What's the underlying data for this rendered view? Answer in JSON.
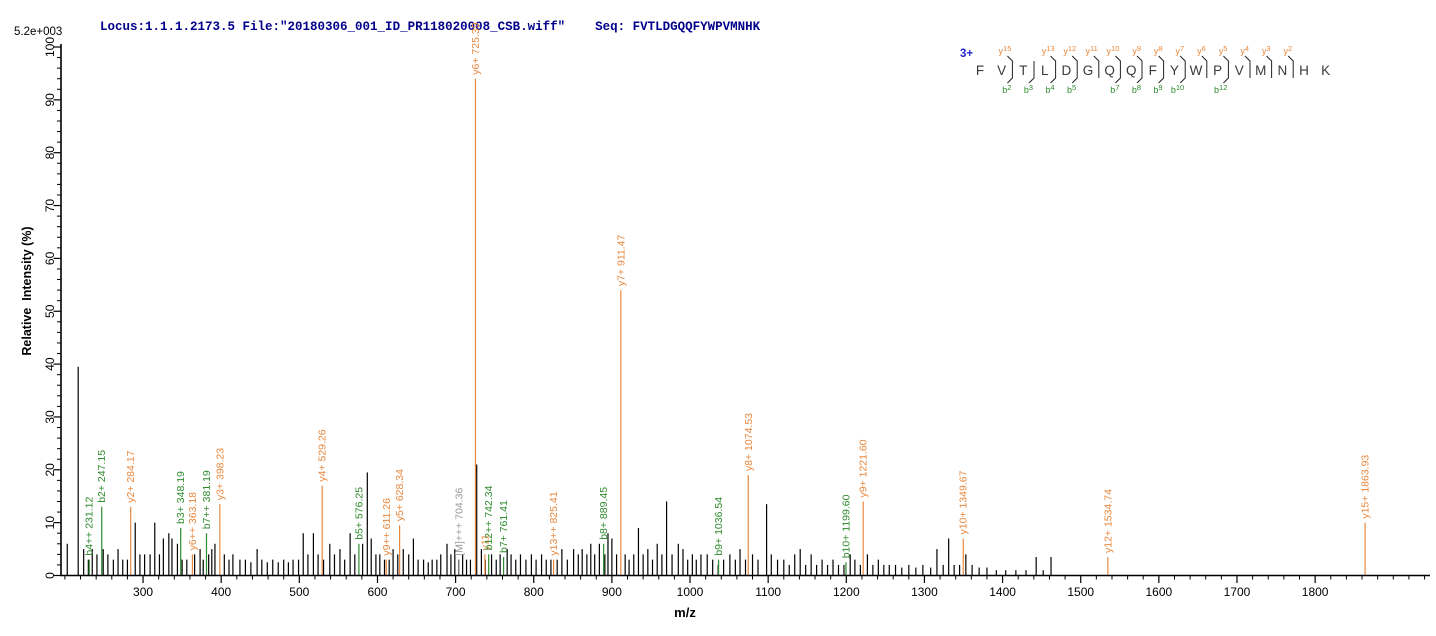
{
  "header": {
    "locus_file": "Locus:1.1.1.2173.5 File:\"20180306_001_ID_PR118020008_CSB.wiff\"",
    "seq": "Seq: FVTLDGQQFYWPVMNHK"
  },
  "colors": {
    "header_text": "#00008b",
    "y_ion": "#e8883e",
    "b_ion": "#2e8b2e",
    "precursor": "#9a9a9a",
    "charge": "#2424cf",
    "residue": "#3a3a3a",
    "peak": "#000000",
    "axis": "#000000"
  },
  "sequence_panel": {
    "charge_label": "3+",
    "residues": [
      "F",
      "V",
      "T",
      "L",
      "D",
      "G",
      "Q",
      "Q",
      "F",
      "Y",
      "W",
      "P",
      "V",
      "M",
      "N",
      "H",
      "K"
    ],
    "cleavages": [
      {
        "after": 2,
        "y": "y15",
        "b": "b2"
      },
      {
        "after": 3,
        "y": null,
        "b": "b3"
      },
      {
        "after": 4,
        "y": "y13",
        "b": "b4"
      },
      {
        "after": 5,
        "y": "y12",
        "b": "b5"
      },
      {
        "after": 6,
        "y": "y11",
        "b": null
      },
      {
        "after": 7,
        "y": "y10",
        "b": "b7"
      },
      {
        "after": 8,
        "y": "y9",
        "b": "b8"
      },
      {
        "after": 9,
        "y": "y8",
        "b": "b9"
      },
      {
        "after": 10,
        "y": "y7",
        "b": "b10"
      },
      {
        "after": 11,
        "y": "y6",
        "b": null
      },
      {
        "after": 12,
        "y": "y5",
        "b": "b12"
      },
      {
        "after": 13,
        "y": "y4",
        "b": null
      },
      {
        "after": 14,
        "y": "y3",
        "b": null
      },
      {
        "after": 15,
        "y": "y2",
        "b": null
      }
    ]
  },
  "chart_data": {
    "type": "bar",
    "subtype": "ms2-mass-spectrum",
    "title": "",
    "xlabel": "m/z",
    "ylabel": "Relative  Intensity (%)",
    "y_axis_note": "5.2e+003",
    "xlim": [
      195,
      1947
    ],
    "ylim": [
      0,
      100
    ],
    "grid": false,
    "x_major_ticks": [
      300,
      400,
      500,
      600,
      700,
      800,
      900,
      1000,
      1100,
      1200,
      1300,
      1400,
      1500,
      1600,
      1700,
      1800
    ],
    "x_minor_step": 20,
    "y_major_step": 10,
    "y_minor_step": 2,
    "annotated_peaks": [
      {
        "label": "b4++ 231.12",
        "ion": "b4++",
        "mz": 231.12,
        "intensity": 3,
        "series": "b"
      },
      {
        "label": "b2+ 247.15",
        "ion": "b2+",
        "mz": 247.15,
        "intensity": 13,
        "series": "b"
      },
      {
        "label": "y2+ 284.17",
        "ion": "y2+",
        "mz": 284.17,
        "intensity": 13,
        "series": "y"
      },
      {
        "label": "b3+ 348.19",
        "ion": "b3+",
        "mz": 348.19,
        "intensity": 9,
        "series": "b"
      },
      {
        "label": "y6++ 363.18",
        "ion": "y6++",
        "mz": 363.18,
        "intensity": 4,
        "series": "y"
      },
      {
        "label": "b7++ 381.19",
        "ion": "b7++",
        "mz": 381.19,
        "intensity": 8,
        "series": "b"
      },
      {
        "label": "y3+ 398.23",
        "ion": "y3+",
        "mz": 398.23,
        "intensity": 13.5,
        "series": "y"
      },
      {
        "label": "y4+ 529.26",
        "ion": "y4+",
        "mz": 529.26,
        "intensity": 17,
        "series": "y"
      },
      {
        "label": "b5+ 576.25",
        "ion": "b5+",
        "mz": 576.25,
        "intensity": 6,
        "series": "b"
      },
      {
        "label": "y9++ 611.26",
        "ion": "y9++",
        "mz": 611.26,
        "intensity": 3,
        "series": "y"
      },
      {
        "label": "y5+ 628.34",
        "ion": "y5+",
        "mz": 628.34,
        "intensity": 9.5,
        "series": "y"
      },
      {
        "label": "[M]+++ 704.36",
        "ion": "[M]+++",
        "mz": 704.36,
        "intensity": 3,
        "series": "precursor"
      },
      {
        "label": "y6+ 725.39",
        "ion": "y6+",
        "mz": 725.39,
        "intensity": 94,
        "series": "y"
      },
      {
        "label": "y11",
        "ion": "y11++",
        "mz": 737.5,
        "intensity": 4,
        "series": "y"
      },
      {
        "label": "b12++ 742.34",
        "ion": "b12++",
        "mz": 742.34,
        "intensity": 4,
        "series": "b"
      },
      {
        "label": "b7+ 761.41",
        "ion": "b7+",
        "mz": 761.41,
        "intensity": 3.5,
        "series": "b"
      },
      {
        "label": "y13++ 825.41",
        "ion": "y13++",
        "mz": 825.41,
        "intensity": 3,
        "series": "y"
      },
      {
        "label": "b8+ 889.45",
        "ion": "b8+",
        "mz": 889.45,
        "intensity": 6,
        "series": "b"
      },
      {
        "label": "y7+ 911.47",
        "ion": "y7+",
        "mz": 911.47,
        "intensity": 54,
        "series": "y"
      },
      {
        "label": "b9+ 1036.54",
        "ion": "b9+",
        "mz": 1036.54,
        "intensity": 3,
        "series": "b"
      },
      {
        "label": "y8+ 1074.53",
        "ion": "y8+",
        "mz": 1074.53,
        "intensity": 19,
        "series": "y"
      },
      {
        "label": "b10+ 1199.60",
        "ion": "b10+",
        "mz": 1199.6,
        "intensity": 2.5,
        "series": "b"
      },
      {
        "label": "y9+ 1221.60",
        "ion": "y9+",
        "mz": 1221.6,
        "intensity": 14,
        "series": "y"
      },
      {
        "label": "y10+ 1349.67",
        "ion": "y10+",
        "mz": 1349.67,
        "intensity": 7,
        "series": "y"
      },
      {
        "label": "y12+ 1534.74",
        "ion": "y12+",
        "mz": 1534.74,
        "intensity": 3.5,
        "series": "y"
      },
      {
        "label": "y15+ 1863.93",
        "ion": "y15+",
        "mz": 1863.93,
        "intensity": 10,
        "series": "y"
      }
    ],
    "background_peaks": [
      [
        203,
        6
      ],
      [
        217,
        39.5
      ],
      [
        224,
        5
      ],
      [
        230,
        3
      ],
      [
        235,
        5
      ],
      [
        241,
        4
      ],
      [
        249,
        5
      ],
      [
        255,
        4
      ],
      [
        262,
        3
      ],
      [
        268,
        5
      ],
      [
        274,
        3
      ],
      [
        280,
        3
      ],
      [
        290,
        10
      ],
      [
        296,
        4
      ],
      [
        302,
        4
      ],
      [
        309,
        4
      ],
      [
        315,
        10
      ],
      [
        321,
        4
      ],
      [
        326,
        7
      ],
      [
        333,
        8
      ],
      [
        337,
        7
      ],
      [
        344,
        6
      ],
      [
        350,
        3
      ],
      [
        356,
        3
      ],
      [
        366,
        4
      ],
      [
        373,
        5
      ],
      [
        377,
        3
      ],
      [
        384,
        4
      ],
      [
        388,
        5
      ],
      [
        392,
        6
      ],
      [
        404,
        4
      ],
      [
        410,
        3
      ],
      [
        415,
        4
      ],
      [
        424,
        3
      ],
      [
        431,
        3
      ],
      [
        438,
        2.5
      ],
      [
        446,
        5
      ],
      [
        452,
        3
      ],
      [
        459,
        2.5
      ],
      [
        466,
        3
      ],
      [
        473,
        2.5
      ],
      [
        480,
        3
      ],
      [
        486,
        2.5
      ],
      [
        492,
        3
      ],
      [
        499,
        3
      ],
      [
        505,
        8
      ],
      [
        511,
        4
      ],
      [
        518,
        8
      ],
      [
        524,
        4
      ],
      [
        531,
        3
      ],
      [
        539,
        6
      ],
      [
        545,
        4
      ],
      [
        552,
        5
      ],
      [
        558,
        3
      ],
      [
        565,
        8
      ],
      [
        571,
        4
      ],
      [
        581,
        6
      ],
      [
        587,
        19.5
      ],
      [
        592,
        7
      ],
      [
        598,
        4
      ],
      [
        603,
        4
      ],
      [
        609,
        3
      ],
      [
        615,
        3
      ],
      [
        620,
        5
      ],
      [
        626,
        4
      ],
      [
        633,
        5
      ],
      [
        640,
        4
      ],
      [
        646,
        7
      ],
      [
        652,
        3
      ],
      [
        659,
        3
      ],
      [
        665,
        2.5
      ],
      [
        670,
        3
      ],
      [
        676,
        3
      ],
      [
        681,
        4
      ],
      [
        689,
        6
      ],
      [
        694,
        4
      ],
      [
        699,
        5
      ],
      [
        704,
        3
      ],
      [
        709,
        4
      ],
      [
        714,
        3
      ],
      [
        719,
        3
      ],
      [
        727,
        21
      ],
      [
        733,
        5
      ],
      [
        738,
        3
      ],
      [
        746,
        4
      ],
      [
        752,
        3
      ],
      [
        757,
        4
      ],
      [
        766,
        5
      ],
      [
        771,
        4
      ],
      [
        777,
        3
      ],
      [
        783,
        4
      ],
      [
        790,
        3
      ],
      [
        797,
        4
      ],
      [
        803,
        3
      ],
      [
        810,
        4
      ],
      [
        816,
        3
      ],
      [
        822,
        3
      ],
      [
        830,
        3
      ],
      [
        836,
        5
      ],
      [
        843,
        3
      ],
      [
        851,
        5
      ],
      [
        857,
        4
      ],
      [
        862,
        5
      ],
      [
        868,
        4
      ],
      [
        873,
        6
      ],
      [
        878,
        4
      ],
      [
        884,
        6
      ],
      [
        891,
        4
      ],
      [
        895,
        8
      ],
      [
        900,
        7
      ],
      [
        906,
        4
      ],
      [
        917,
        4
      ],
      [
        922,
        3
      ],
      [
        928,
        4
      ],
      [
        934,
        9
      ],
      [
        940,
        4
      ],
      [
        946,
        5
      ],
      [
        952,
        3
      ],
      [
        958,
        6
      ],
      [
        964,
        4
      ],
      [
        970,
        14
      ],
      [
        977,
        4
      ],
      [
        985,
        6
      ],
      [
        991,
        5
      ],
      [
        997,
        3
      ],
      [
        1003,
        4
      ],
      [
        1008,
        3
      ],
      [
        1014,
        4
      ],
      [
        1022,
        4
      ],
      [
        1029,
        3
      ],
      [
        1036,
        2
      ],
      [
        1043,
        3
      ],
      [
        1051,
        4
      ],
      [
        1058,
        3
      ],
      [
        1064,
        5
      ],
      [
        1071,
        3
      ],
      [
        1080,
        4
      ],
      [
        1087,
        3
      ],
      [
        1098,
        13.5
      ],
      [
        1104,
        4
      ],
      [
        1112,
        3
      ],
      [
        1120,
        3
      ],
      [
        1127,
        2
      ],
      [
        1134,
        4
      ],
      [
        1141,
        5
      ],
      [
        1148,
        2
      ],
      [
        1155,
        4
      ],
      [
        1162,
        2
      ],
      [
        1169,
        3
      ],
      [
        1176,
        2
      ],
      [
        1183,
        3
      ],
      [
        1190,
        2
      ],
      [
        1197,
        2
      ],
      [
        1205,
        4
      ],
      [
        1211,
        3
      ],
      [
        1218,
        2
      ],
      [
        1227,
        4
      ],
      [
        1234,
        2
      ],
      [
        1241,
        3
      ],
      [
        1248,
        2
      ],
      [
        1255,
        2
      ],
      [
        1263,
        2
      ],
      [
        1271,
        1.5
      ],
      [
        1280,
        2
      ],
      [
        1289,
        1.5
      ],
      [
        1298,
        2
      ],
      [
        1308,
        1.5
      ],
      [
        1316,
        5
      ],
      [
        1324,
        2
      ],
      [
        1331,
        7
      ],
      [
        1338,
        2
      ],
      [
        1345,
        2
      ],
      [
        1353,
        4
      ],
      [
        1361,
        2
      ],
      [
        1370,
        1.5
      ],
      [
        1380,
        1.5
      ],
      [
        1392,
        1
      ],
      [
        1404,
        1
      ],
      [
        1417,
        1
      ],
      [
        1430,
        1
      ],
      [
        1443,
        3.5
      ],
      [
        1452,
        1
      ],
      [
        1462,
        3.5
      ]
    ]
  }
}
